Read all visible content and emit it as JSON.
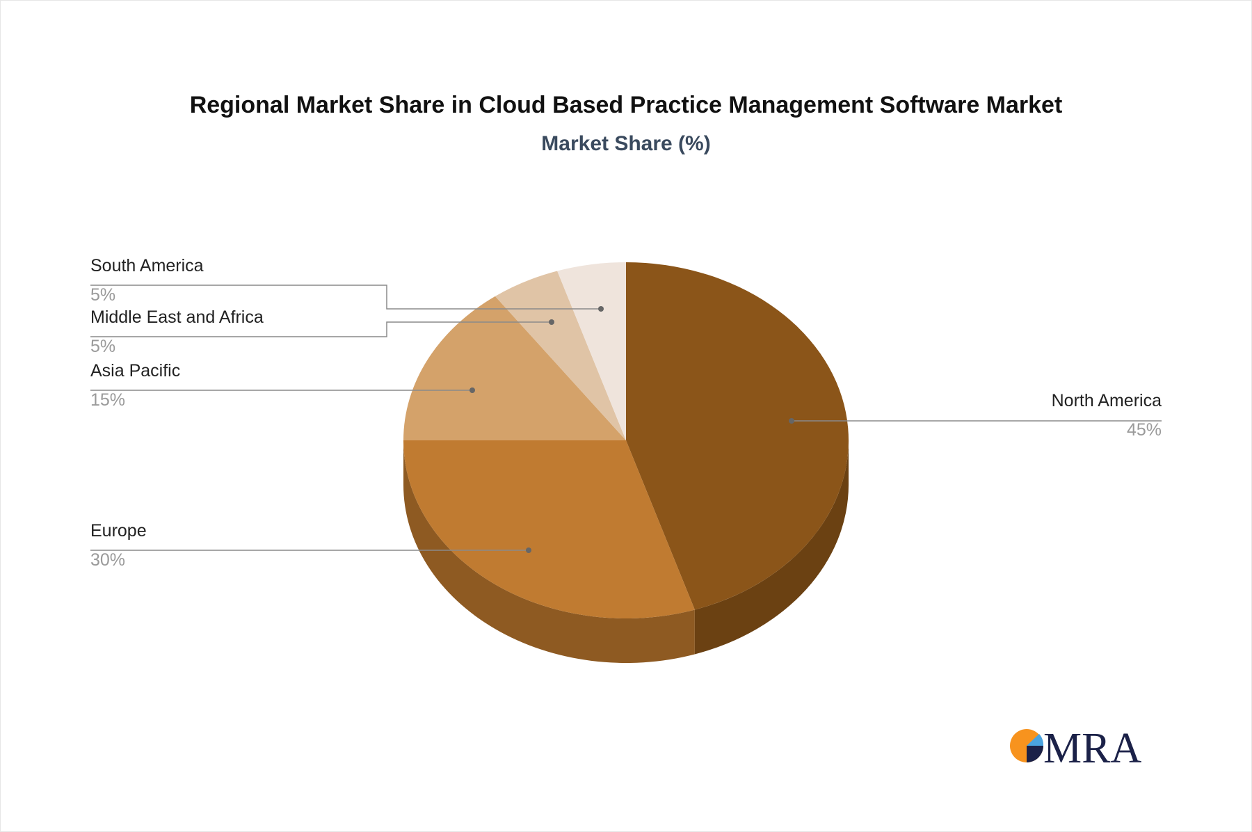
{
  "chart_data": {
    "type": "pie",
    "title": "Regional Market Share in Cloud Based Practice Management Software Market",
    "subtitle": "Market Share (%)",
    "slices": [
      {
        "label": "North America",
        "value": 45,
        "display": "45%",
        "color": "#8b5519",
        "side_color": "#6b4112"
      },
      {
        "label": "Europe",
        "value": 30,
        "display": "30%",
        "color": "#c07b31",
        "side_color": "#8e5a22"
      },
      {
        "label": "Asia Pacific",
        "value": 15,
        "display": "15%",
        "color": "#d4a26a",
        "side_color": "#a87c4c"
      },
      {
        "label": "Middle East and Africa",
        "value": 5,
        "display": "5%",
        "color": "#e0c4a6",
        "side_color": "#b99d80"
      },
      {
        "label": "South America",
        "value": 5,
        "display": "5%",
        "color": "#efe4dc",
        "side_color": "#c9beb5"
      }
    ],
    "legend": "callout-labels",
    "style": "3d"
  },
  "logo": {
    "text": "MRA",
    "colors": [
      "#f7931e",
      "#1b2148",
      "#4aa3df"
    ]
  }
}
